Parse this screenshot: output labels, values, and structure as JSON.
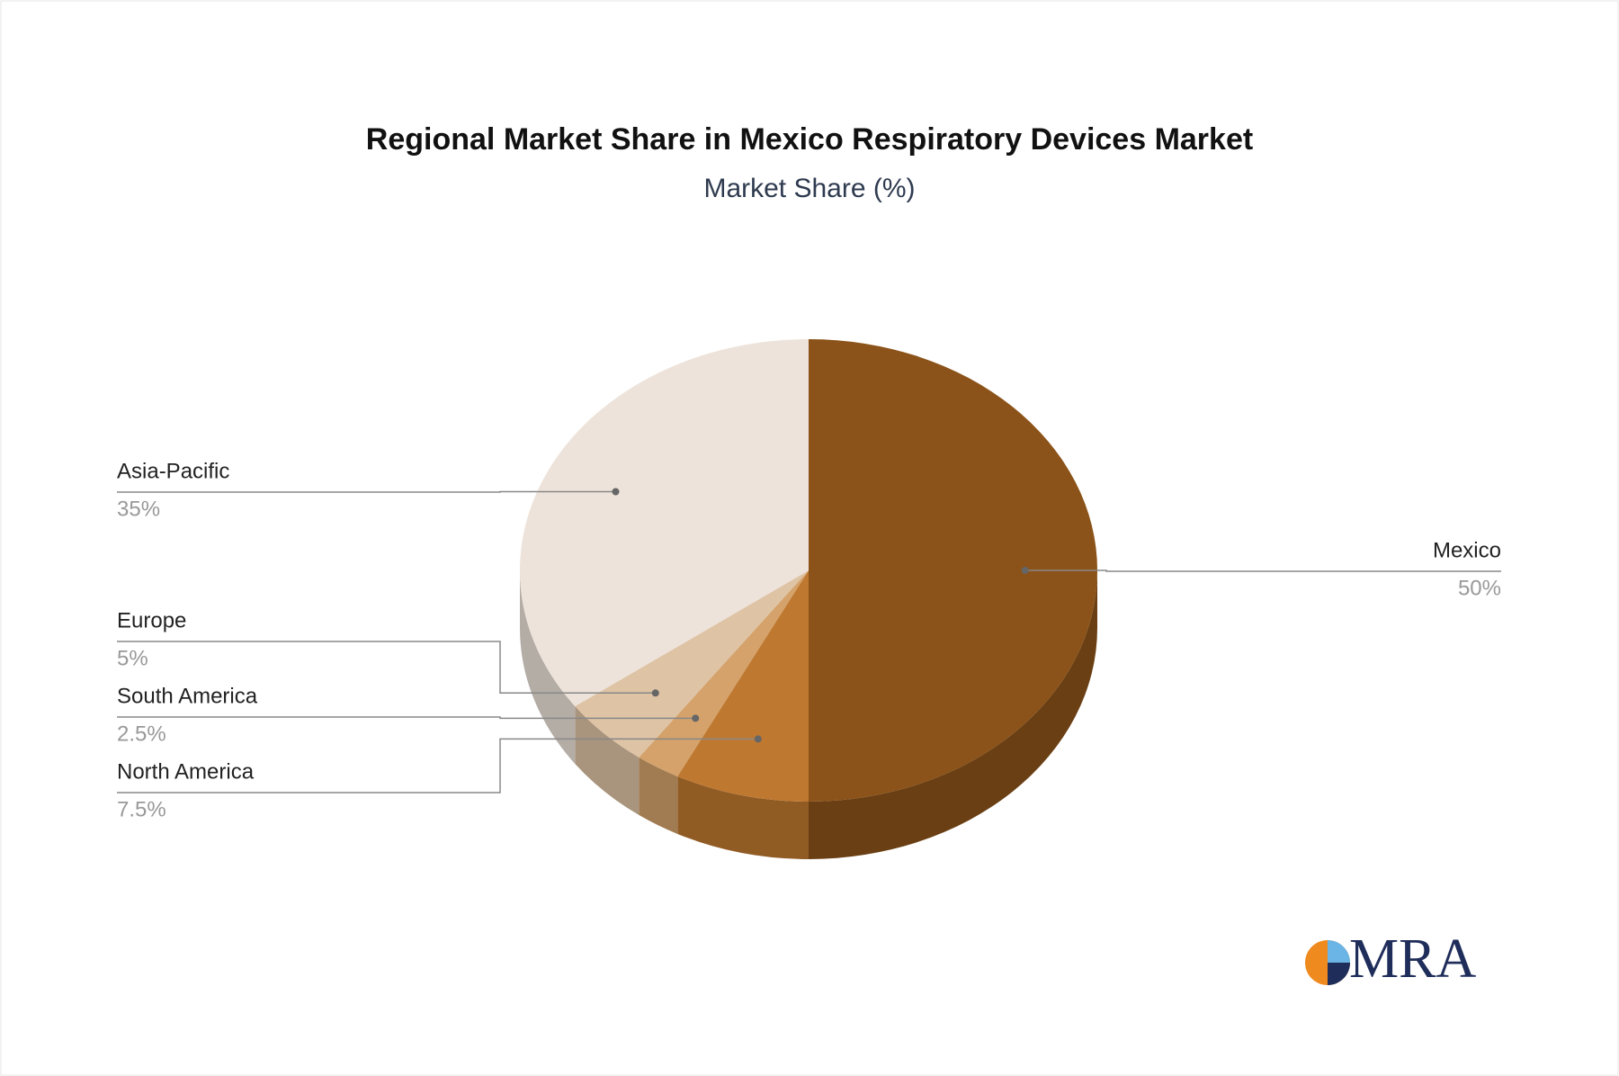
{
  "chart_data": {
    "type": "pie",
    "title": "Regional Market Share in Mexico Respiratory Devices Market",
    "subtitle": "Market Share (%)",
    "categories": [
      "Mexico",
      "North America",
      "South America",
      "Europe",
      "Asia-Pacific"
    ],
    "values": [
      50,
      7.5,
      2.5,
      5,
      35
    ],
    "value_labels": [
      "50%",
      "7.5%",
      "2.5%",
      "5%",
      "35%"
    ],
    "colors": [
      "#8B5319",
      "#BF7830",
      "#D4A26A",
      "#DEC3A5",
      "#EDE3DA"
    ]
  },
  "logo": "MRA"
}
